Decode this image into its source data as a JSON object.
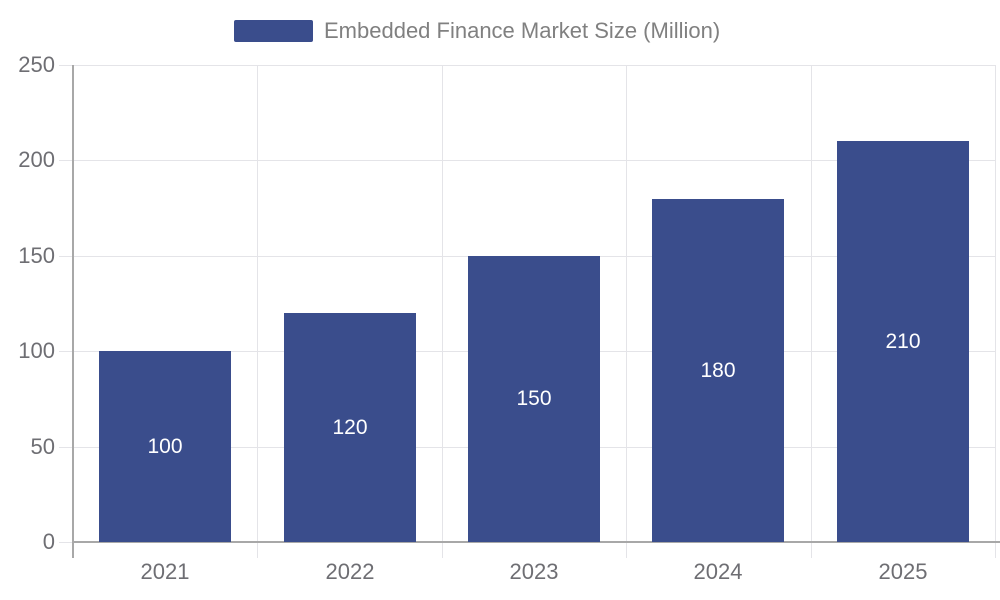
{
  "chart_data": {
    "type": "bar",
    "title": "",
    "legend_label": "Embedded Finance Market Size (Million)",
    "legend_position": "top",
    "categories": [
      "2021",
      "2022",
      "2023",
      "2024",
      "2025"
    ],
    "series": [
      {
        "name": "Embedded Finance Market Size (Million)",
        "values": [
          100,
          120,
          150,
          180,
          210
        ]
      }
    ],
    "xlabel": "",
    "ylabel": "",
    "ylim": [
      0,
      250
    ],
    "yticks": [
      0,
      50,
      100,
      150,
      200,
      250
    ],
    "grid": true,
    "bar_value_labels_shown": true,
    "colors": {
      "bar": "#3A4D8C",
      "bar_value_label": "#FFFFFF",
      "axis_line": "#A8A8A8",
      "gridline": "#E4E4E8",
      "tick_label": "#6E6E73",
      "legend_text": "#808080",
      "background": "#FFFFFF"
    }
  }
}
